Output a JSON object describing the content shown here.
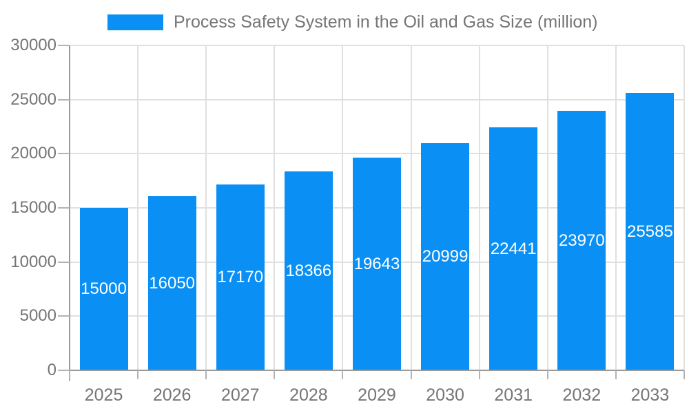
{
  "chart_data": {
    "type": "bar",
    "title": "Process Safety System in the Oil and Gas Size (million)",
    "legend": {
      "position": "top",
      "label": "Process Safety System in the Oil and Gas Size (million)"
    },
    "categories": [
      "2025",
      "2026",
      "2027",
      "2028",
      "2029",
      "2030",
      "2031",
      "2032",
      "2033"
    ],
    "values": [
      15000,
      16050,
      17170,
      18366,
      19643,
      20999,
      22441,
      23970,
      25585
    ],
    "xlabel": "",
    "ylabel": "",
    "ylim": [
      0,
      30000
    ],
    "y_ticks": [
      0,
      5000,
      10000,
      15000,
      20000,
      25000,
      30000
    ],
    "grid": true,
    "value_labels_position": "inside-middle",
    "colors": {
      "bar": "#0a8ff4",
      "value_label_text": "#ffffff",
      "axis_text": "#757575",
      "gridline": "#e0e0e0",
      "axis_line": "#999999",
      "tick": "#b3b3b3",
      "background": "#ffffff"
    }
  }
}
